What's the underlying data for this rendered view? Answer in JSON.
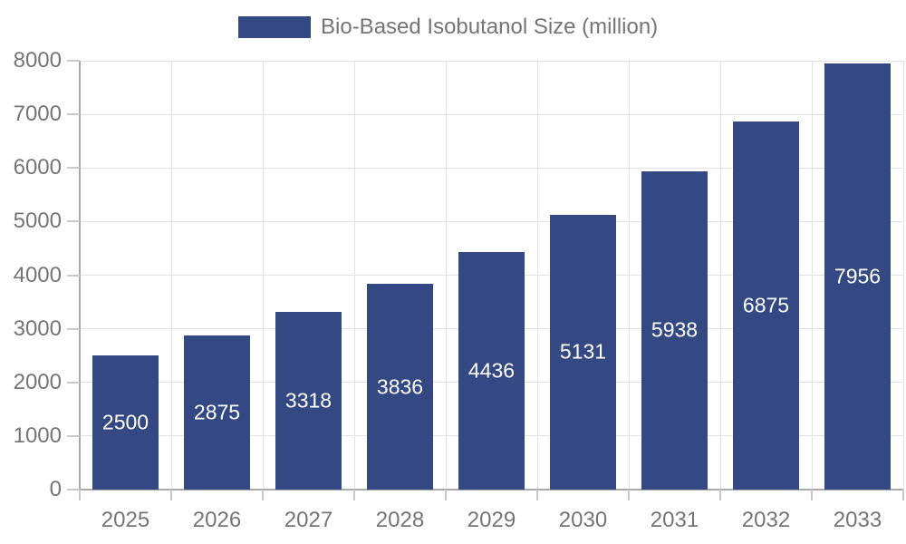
{
  "legend": {
    "label": "Bio-Based Isobutanol Size (million)"
  },
  "chart_data": {
    "type": "bar",
    "title": "",
    "xlabel": "",
    "ylabel": "",
    "series_name": "Bio-Based Isobutanol Size (million)",
    "categories": [
      "2025",
      "2026",
      "2027",
      "2028",
      "2029",
      "2030",
      "2031",
      "2032",
      "2033"
    ],
    "values": [
      2500,
      2875,
      3318,
      3836,
      4436,
      5131,
      5938,
      6875,
      7956
    ],
    "value_labels_position": "inside-center",
    "ylim": [
      0,
      8000
    ],
    "yticks": [
      0,
      1000,
      2000,
      3000,
      4000,
      5000,
      6000,
      7000,
      8000
    ],
    "grid": true,
    "legend_position": "top",
    "colors": {
      "bar": "#344983",
      "value_label": "#ffffff",
      "axis_line": "#a9a9a9",
      "gridline": "#e2e2e2",
      "tick_mark": "#c9c9c9",
      "tick_label": "#757575",
      "legend_text": "#757575",
      "background": "#ffffff"
    }
  }
}
